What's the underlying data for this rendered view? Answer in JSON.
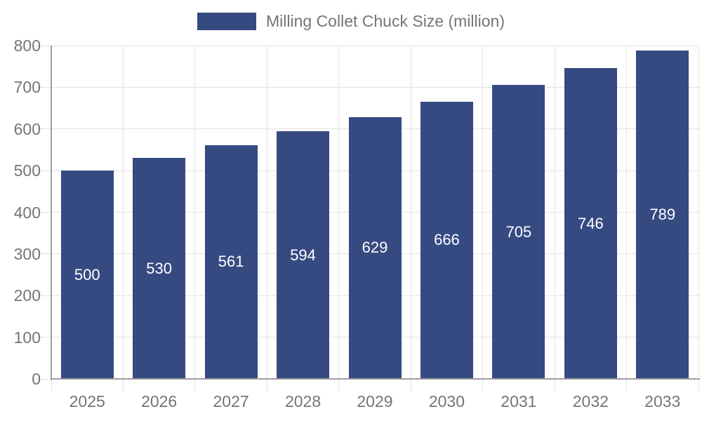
{
  "chart_data": {
    "type": "bar",
    "title": "",
    "categories": [
      "2025",
      "2026",
      "2027",
      "2028",
      "2029",
      "2030",
      "2031",
      "2032",
      "2033"
    ],
    "values": [
      500,
      530,
      561,
      594,
      629,
      666,
      705,
      746,
      789
    ],
    "series_name": "Milling Collet Chuck Size (million)",
    "xlabel": "",
    "ylabel": "",
    "ylim": [
      0,
      800
    ],
    "ytick_step": 100,
    "yticks": [
      0,
      100,
      200,
      300,
      400,
      500,
      600,
      700,
      800
    ],
    "grid": true,
    "legend_position": "top",
    "value_label_position": "inside-center"
  },
  "legend": {
    "label": "Milling Collet Chuck Size (million)"
  },
  "colors": {
    "bar": "#364a82",
    "axis_text": "#757575",
    "legend_text": "#757575",
    "bar_value_text": "#ffffff",
    "gridline": "#e3e3e3",
    "axis_line": "#9e9e9e",
    "background": "#ffffff"
  }
}
